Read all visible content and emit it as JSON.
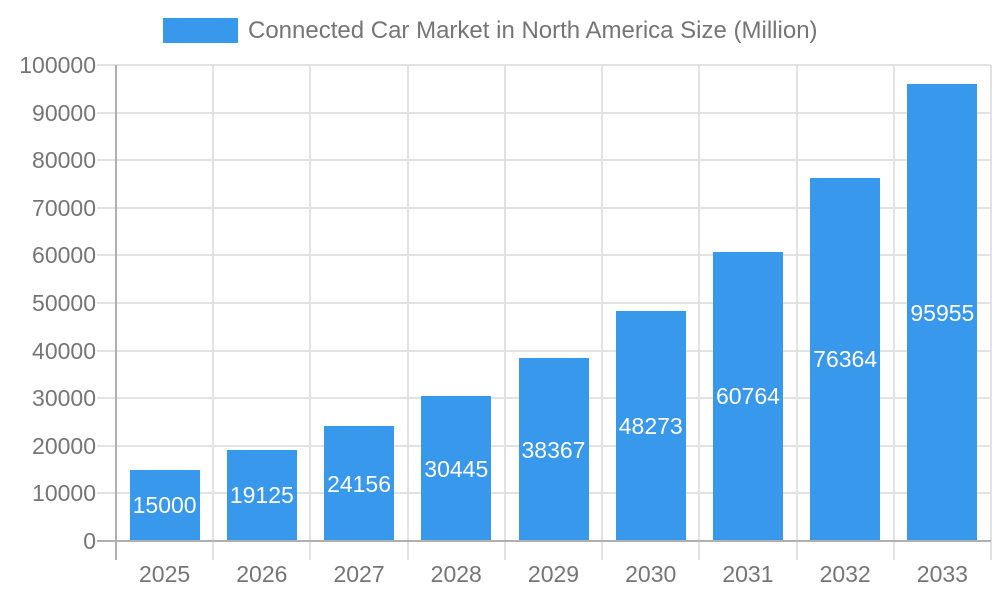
{
  "legend": {
    "position": "top"
  },
  "chart_data": {
    "type": "bar",
    "title": "Connected Car Market in North America Size (Million)",
    "categories": [
      "2025",
      "2026",
      "2027",
      "2028",
      "2029",
      "2030",
      "2031",
      "2032",
      "2033"
    ],
    "values": [
      15000,
      19125,
      24156,
      30445,
      38367,
      48273,
      60764,
      76364,
      95955
    ],
    "xlabel": "",
    "ylabel": "",
    "ylim": [
      0,
      100000
    ],
    "yticks": [
      0,
      10000,
      20000,
      30000,
      40000,
      50000,
      60000,
      70000,
      80000,
      90000,
      100000
    ],
    "grid": "both",
    "legend_position": "top",
    "value_labels": "inside-center",
    "colors": {
      "bar": "#3898EC",
      "value_label": "#FFFFFF",
      "tick_label": "#757575",
      "legend_text": "#757575",
      "gridline": "#E2E2E2",
      "axis_line": "#B0B0B0",
      "background": "#FFFFFF"
    }
  }
}
